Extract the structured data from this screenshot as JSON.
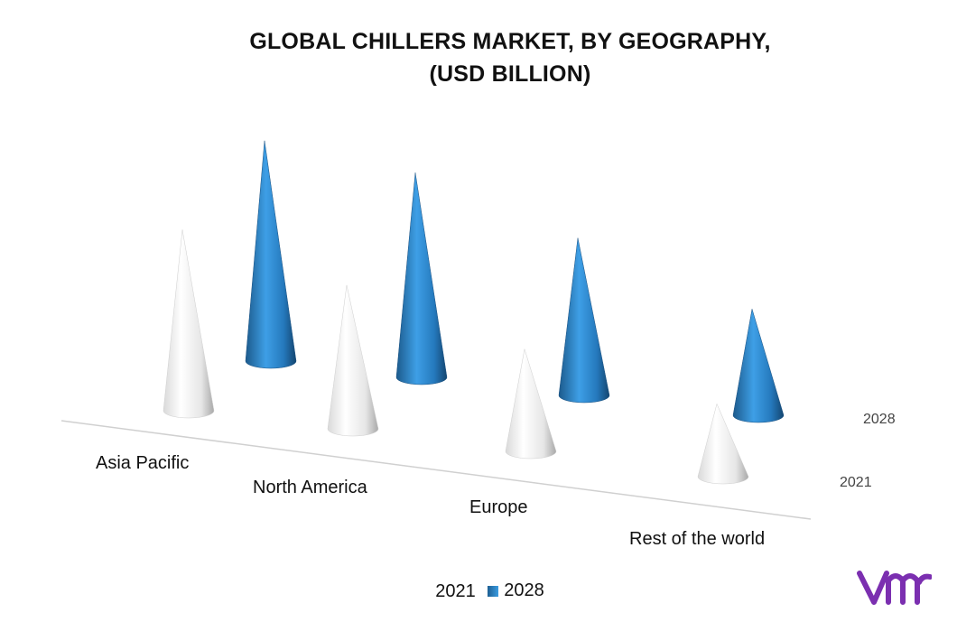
{
  "title_line1": "GLOBAL CHILLERS MARKET, BY GEOGRAPHY,",
  "title_line2": "(USD BILLION)",
  "chart_data": {
    "type": "bar",
    "style": "3d-cone",
    "categories": [
      "Asia Pacific",
      "North America",
      "Europe",
      "Rest of the world"
    ],
    "series": [
      {
        "name": "2021",
        "values": [
          9.2,
          7.3,
          5.2,
          3.7
        ],
        "color": "#f2f2f2"
      },
      {
        "name": "2028",
        "values": [
          11.2,
          10.4,
          8.0,
          5.4
        ],
        "color": "#2b7cc0"
      }
    ],
    "series_axis_labels": [
      "2028",
      "2021"
    ],
    "legend": {
      "position": "bottom",
      "entries": [
        "2021",
        "2028"
      ]
    },
    "grid": false
  },
  "logo": {
    "name": "vmr-logo",
    "color": "#7b2fb0"
  }
}
